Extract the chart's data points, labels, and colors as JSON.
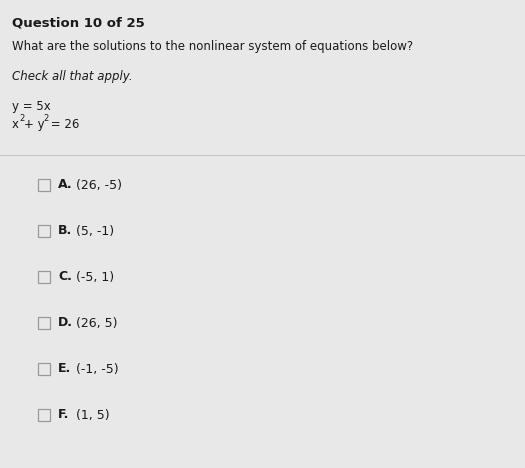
{
  "bg_color": "#e8e8e8",
  "question_header": "Question 10 of 25",
  "question_text": "What are the solutions to the nonlinear system of equations below?",
  "instruction_text": "Check all that apply.",
  "eq1": "y = 5x",
  "choices": [
    {
      "label": "A.",
      "text": "(26, -5)"
    },
    {
      "label": "B.",
      "text": "(5, -1)"
    },
    {
      "label": "C.",
      "text": "(-5, 1)"
    },
    {
      "label": "D.",
      "text": "(26, 5)"
    },
    {
      "label": "E.",
      "text": "(-1, -5)"
    },
    {
      "label": "F.",
      "text": "(1, 5)"
    }
  ],
  "header_fontsize": 9.5,
  "question_fontsize": 8.5,
  "instruction_fontsize": 8.5,
  "eq_fontsize": 8.5,
  "choice_fontsize": 9,
  "text_color": "#1a1a1a",
  "divider_color": "#c8c8c8",
  "checkbox_edge_color": "#999999",
  "checkbox_face_color": "#e8e8e8"
}
